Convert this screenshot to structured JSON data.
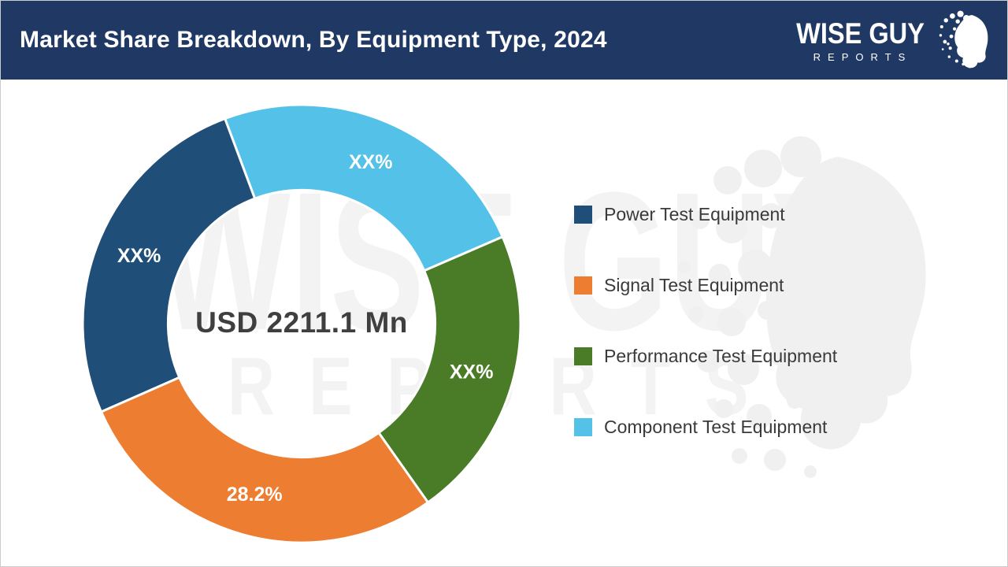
{
  "header": {
    "title": "Market Share Breakdown, By Equipment Type, 2024",
    "background_color": "#1f3864",
    "logo": {
      "wordmark": "WISE GUY",
      "subtitle": "REPORTS"
    }
  },
  "watermark": {
    "wordmark": "WISE GUY",
    "subtitle": "REPORTS"
  },
  "chart_data": {
    "type": "pie",
    "donut": true,
    "title": "Market Share Breakdown, By Equipment Type, 2024",
    "center_label": "USD 2211.1 Mn",
    "legend_position": "right",
    "start_angle_deg": 339.5,
    "render_order": [
      3,
      2,
      1,
      0
    ],
    "inner_radius_ratio": 0.61,
    "slices": [
      {
        "name": "Power Test Equipment",
        "label": "XX%",
        "value_pct": 25.9,
        "color": "#1f4e79"
      },
      {
        "name": "Signal Test Equipment",
        "label": "28.2%",
        "value_pct": 28.2,
        "color": "#ed7d31"
      },
      {
        "name": "Performance Test Equipment",
        "label": "XX%",
        "value_pct": 21.7,
        "color": "#4a7c28"
      },
      {
        "name": "Component Test Equipment",
        "label": "XX%",
        "value_pct": 24.2,
        "color": "#54c1e8"
      }
    ]
  }
}
